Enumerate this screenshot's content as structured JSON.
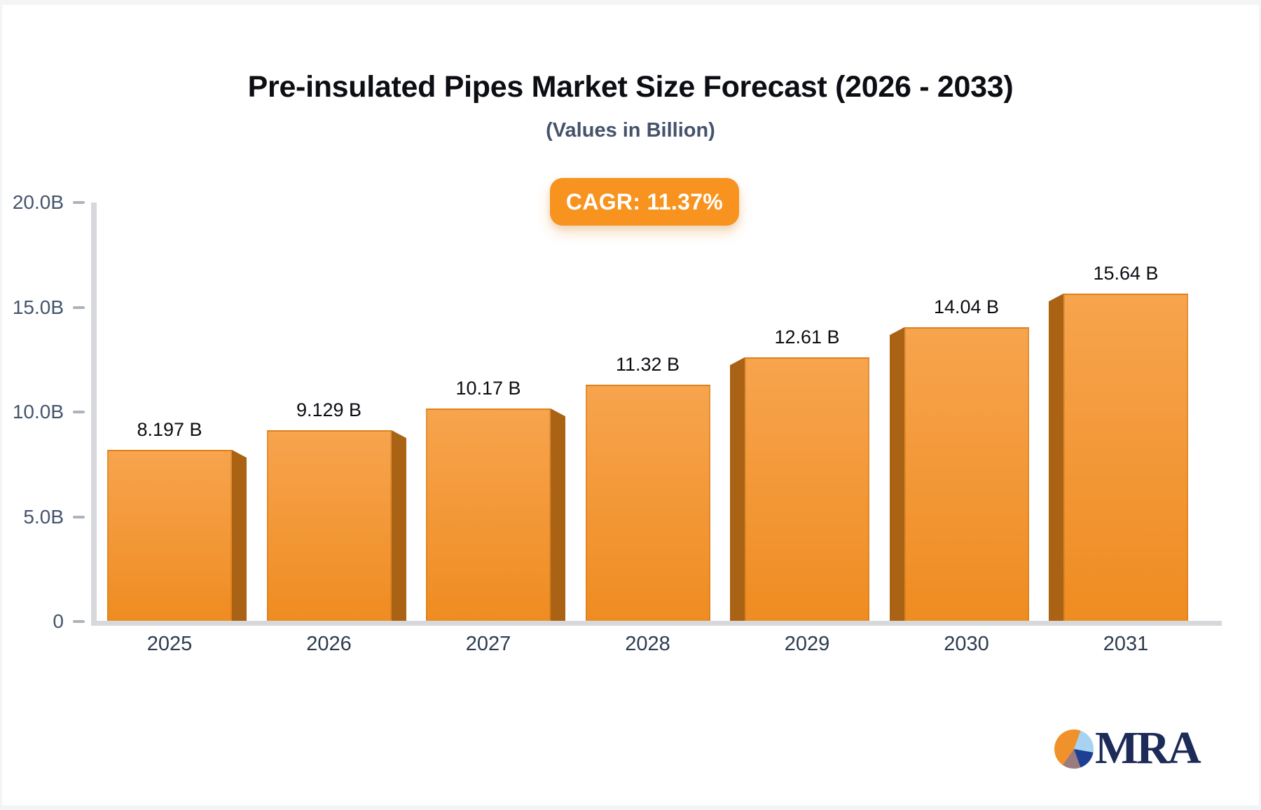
{
  "header": {
    "title": "Pre-insulated Pipes Market Size Forecast (2026 - 2033)",
    "subtitle": "(Values in Billion)",
    "cagr_badge": "CAGR: 11.37%"
  },
  "chart_data": {
    "type": "bar",
    "title": "Pre-insulated Pipes Market Size Forecast (2026 - 2033)",
    "subtitle": "(Values in Billion)",
    "annotation": "CAGR: 11.37%",
    "categories": [
      "2025",
      "2026",
      "2027",
      "2028",
      "2029",
      "2030",
      "2031"
    ],
    "values": [
      8.197,
      9.129,
      10.17,
      11.32,
      12.61,
      14.04,
      15.64
    ],
    "value_labels": [
      "8.197 B",
      "9.129 B",
      "10.17 B",
      "11.32 B",
      "12.61 B",
      "14.04 B",
      "15.64 B"
    ],
    "xlabel": "",
    "ylabel": "",
    "ylim": [
      0,
      20
    ],
    "grid": false,
    "legend": null,
    "y_axis": {
      "ticks": [
        {
          "label": "20.0B",
          "value": 20
        },
        {
          "label": "15.0B",
          "value": 15
        },
        {
          "label": "10.0B",
          "value": 10
        },
        {
          "label": "5.0B",
          "value": 5
        },
        {
          "label": "0",
          "value": 0
        }
      ]
    }
  },
  "footer": {
    "logo_text": "MRA"
  },
  "colors": {
    "bar_top": "#F7A44E",
    "bar_bottom": "#EF8C21",
    "bar_side": "#AA6315",
    "badge_bg": "#F7931E",
    "title": "#0C0E13",
    "subtitle": "#44536B",
    "y_label": "#45546C",
    "x_label": "#2F3B50",
    "value_label": "#0A0D12",
    "axis_line": "#D6D8DC",
    "tick": "#ADB3BC",
    "logo_navy": "#1C2B57",
    "pie_orange": "#F0922B",
    "pie_lightblue": "#A7D3F1",
    "pie_darkblue": "#1D3F94",
    "pie_mauve": "#9B7B80"
  }
}
